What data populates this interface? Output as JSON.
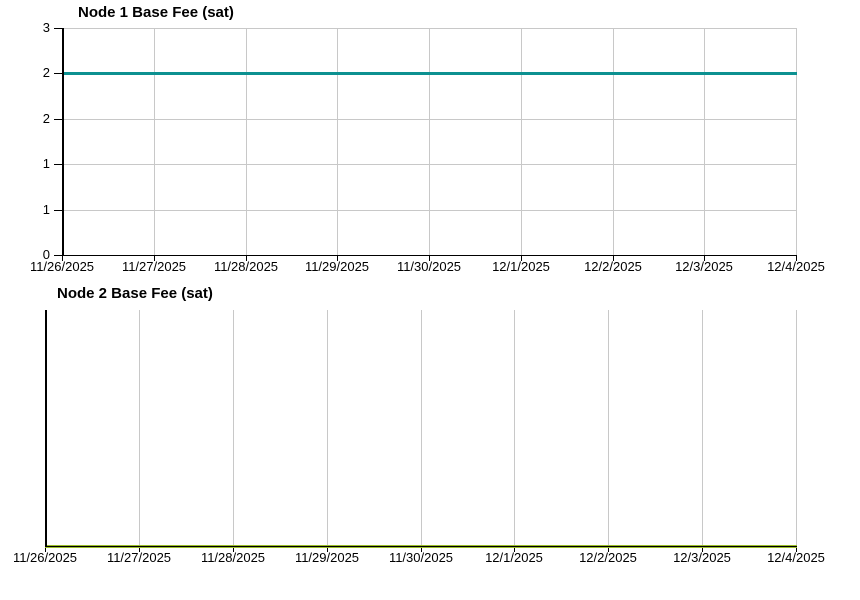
{
  "colors": {
    "background": "#ffffff",
    "grid": "#c8c8c8",
    "axis": "#000000",
    "text": "#000000",
    "node1_line": "#0d9191",
    "node2_line": "#9cbe2a"
  },
  "chart_data": [
    {
      "type": "line",
      "title": "Node 1 Base Fee (sat)",
      "xlabel": "",
      "ylabel": "",
      "x": [
        "11/26/2025",
        "11/27/2025",
        "11/28/2025",
        "11/29/2025",
        "11/30/2025",
        "12/1/2025",
        "12/2/2025",
        "12/3/2025",
        "12/4/2025"
      ],
      "series": [
        {
          "name": "Node 1 Base Fee",
          "values": [
            2,
            2,
            2,
            2,
            2,
            2,
            2,
            2,
            2
          ],
          "color": "#0d9191"
        }
      ],
      "ylim": [
        0,
        2.5
      ],
      "y_tick_labels": [
        "3",
        "2",
        "2",
        "1",
        "1",
        "0"
      ],
      "grid": "horizontal-and-vertical",
      "legend": "none"
    },
    {
      "type": "line",
      "title": "Node 2 Base Fee (sat)",
      "xlabel": "",
      "ylabel": "",
      "x": [
        "11/26/2025",
        "11/27/2025",
        "11/28/2025",
        "11/29/2025",
        "11/30/2025",
        "12/1/2025",
        "12/2/2025",
        "12/3/2025",
        "12/4/2025"
      ],
      "series": [
        {
          "name": "Node 2 Base Fee",
          "values": [
            0,
            0,
            0,
            0,
            0,
            0,
            0,
            0,
            0
          ],
          "color": "#9cbe2a"
        }
      ],
      "ylim": [
        0,
        1
      ],
      "y_tick_labels": [],
      "grid": "vertical-only",
      "legend": "none"
    }
  ]
}
